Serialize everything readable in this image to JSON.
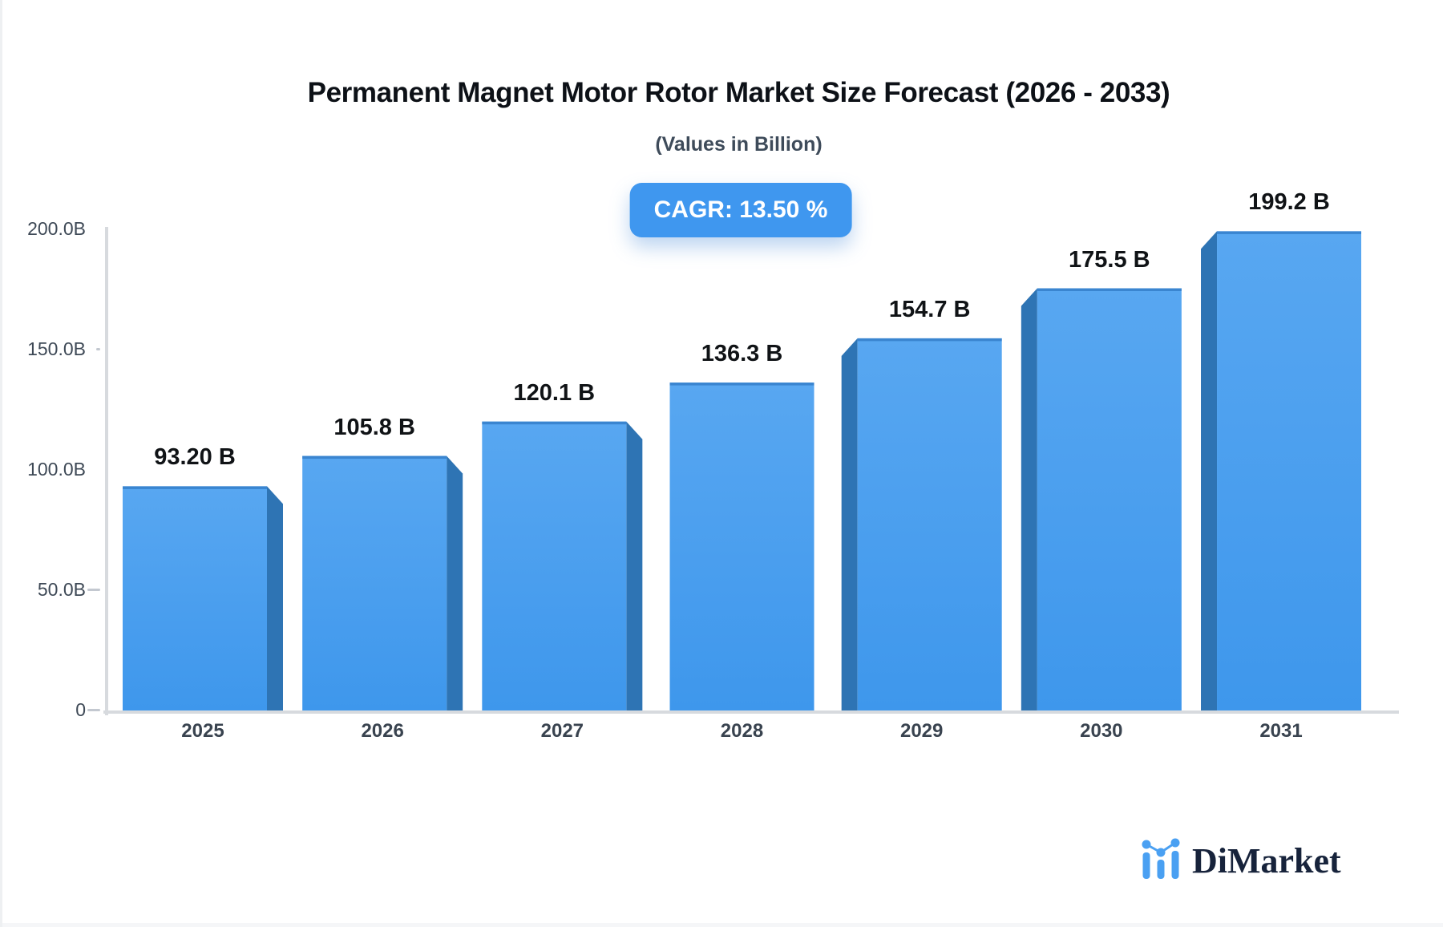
{
  "title": "Permanent Magnet Motor Rotor Market Size Forecast (2026 - 2033)",
  "subtitle": "(Values in Billion)",
  "badge": {
    "label": "CAGR: 13.50 %"
  },
  "logo": {
    "name": "DiMarket"
  },
  "colors": {
    "bar_face_top": "#58a7f1",
    "bar_face_bottom": "#3e97ec",
    "bar_side": "#2e74b4",
    "bar_top_edge": "#3a85d0",
    "badge_bg": "#3f97ef",
    "axis_line": "#d7dade",
    "logo_blue": "#4aa0f2",
    "logo_navy": "#17233b"
  },
  "chart_data": {
    "type": "bar",
    "title": "Permanent Magnet Motor Rotor Market Size Forecast (2026 - 2033)",
    "subtitle": "(Values in Billion)",
    "annotation": "CAGR: 13.50 %",
    "categories": [
      "2025",
      "2026",
      "2027",
      "2028",
      "2029",
      "2030",
      "2031"
    ],
    "values": [
      93.2,
      105.8,
      120.1,
      136.3,
      154.7,
      175.5,
      199.2
    ],
    "value_labels": [
      "93.20 B",
      "105.8 B",
      "120.1 B",
      "136.3 B",
      "154.7 B",
      "175.5 B",
      "199.2 B"
    ],
    "xlabel": "",
    "ylabel": "",
    "ylim": [
      0,
      200
    ],
    "yticks": [
      {
        "value": 0,
        "label": "0"
      },
      {
        "value": 50,
        "label": "50.0B"
      },
      {
        "value": 100,
        "label": "100.0B"
      },
      {
        "value": 150,
        "label": "150.0B"
      },
      {
        "value": 200,
        "label": "200.0B"
      }
    ],
    "grid": false,
    "legend": false
  }
}
